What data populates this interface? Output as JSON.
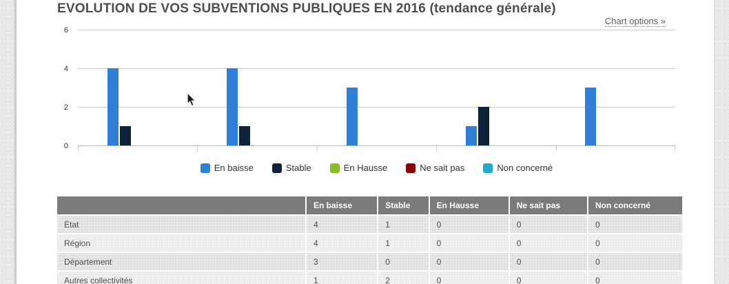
{
  "page": {
    "title": "EVOLUTION DE VOS SUBVENTIONS PUBLIQUES EN 2016 (tendance générale)",
    "chart_options_label": "Chart options »"
  },
  "chart_data": {
    "type": "bar",
    "title": "EVOLUTION DE VOS SUBVENTIONS PUBLIQUES EN 2016 (tendance générale)",
    "categories": [
      "État",
      "Région",
      "Département",
      "Autres collectivités",
      ""
    ],
    "series": [
      {
        "name": "En baisse",
        "color": "#2f7ed8",
        "values": [
          4,
          4,
          3,
          1,
          3
        ]
      },
      {
        "name": "Stable",
        "color": "#0d233a",
        "values": [
          1,
          1,
          0,
          2,
          0
        ]
      },
      {
        "name": "En Hausse",
        "color": "#8bbc21",
        "values": [
          0,
          0,
          0,
          0,
          0
        ]
      },
      {
        "name": "Ne sait pas",
        "color": "#910000",
        "values": [
          0,
          0,
          0,
          0,
          0
        ]
      },
      {
        "name": "Non concerné",
        "color": "#1aadce",
        "values": [
          0,
          0,
          0,
          0,
          0
        ]
      }
    ],
    "xlabel": "",
    "ylabel": "",
    "ylim": [
      0,
      6
    ],
    "yticks": [
      0,
      2,
      4,
      6
    ],
    "grid": true,
    "legend_position": "bottom"
  },
  "table": {
    "columns": [
      "",
      "En baisse",
      "Stable",
      "En Hausse",
      "Ne sait pas",
      "Non concerné"
    ],
    "rows": [
      {
        "label": "État",
        "values": [
          4,
          1,
          0,
          0,
          0
        ]
      },
      {
        "label": "Région",
        "values": [
          4,
          1,
          0,
          0,
          0
        ]
      },
      {
        "label": "Département",
        "values": [
          3,
          0,
          0,
          0,
          0
        ]
      },
      {
        "label": "Autres collectivités",
        "values": [
          1,
          2,
          0,
          0,
          0
        ]
      }
    ]
  }
}
